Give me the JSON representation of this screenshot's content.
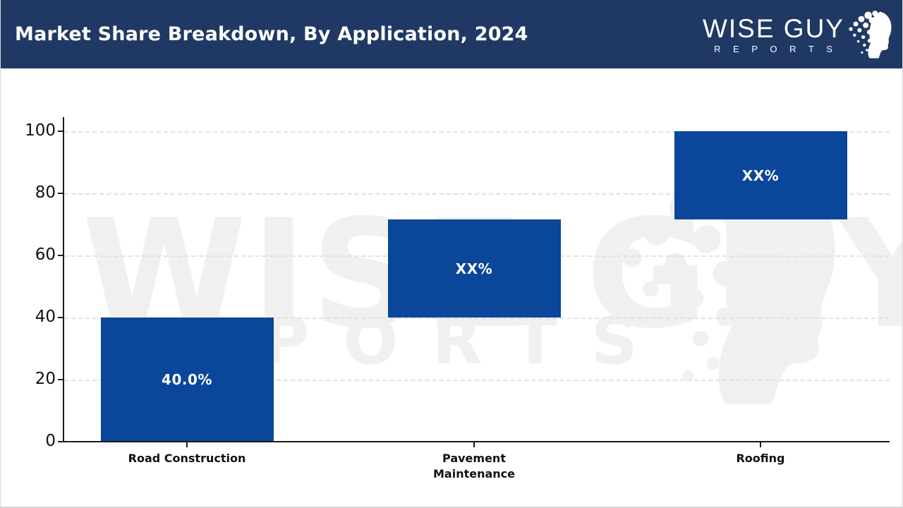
{
  "header": {
    "title": "Market Share Breakdown, By Application, 2024",
    "bg_color": "#203864",
    "logo": {
      "name": "WISE GUY",
      "sub": "R E P O R T S"
    }
  },
  "watermark": {
    "line1": "WISE GUY",
    "line2": "REPORTS"
  },
  "chart_data": {
    "type": "bar",
    "variant": "waterfall",
    "title": "Market Share Breakdown, By Application, 2024",
    "categories": [
      "Road Construction",
      "Pavement\nMaintenance",
      "Roofing"
    ],
    "segments": [
      {
        "category": "Road Construction",
        "start": 0,
        "end": 40,
        "value": 40.0,
        "label": "40.0%"
      },
      {
        "category": "Pavement Maintenance",
        "start": 40,
        "end": 71.5,
        "value": 31.5,
        "label": "XX%"
      },
      {
        "category": "Roofing",
        "start": 71.5,
        "end": 100,
        "value": 28.5,
        "label": "XX%"
      }
    ],
    "yticks": [
      0,
      20,
      40,
      60,
      80,
      100
    ],
    "ylim": [
      0,
      105
    ],
    "xlabel": "",
    "ylabel": "",
    "grid": "horizontal-dashed",
    "legend": false,
    "colors": {
      "bar": "#0a4699",
      "bar_label": "#ffffff",
      "axis": "#1a1a1a",
      "grid": "#e0e0e0",
      "header_bg": "#203864",
      "watermark": "#f0f0f1"
    }
  }
}
